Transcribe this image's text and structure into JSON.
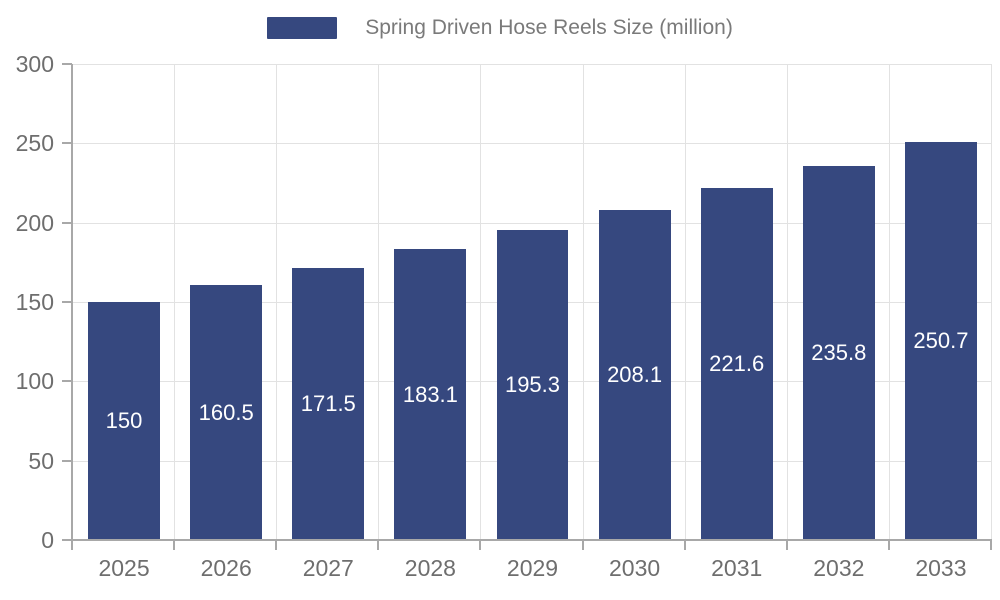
{
  "chart_data": {
    "type": "bar",
    "title": "",
    "legend": "Spring Driven Hose Reels Size (million)",
    "legend_position": "top-center",
    "categories": [
      "2025",
      "2026",
      "2027",
      "2028",
      "2029",
      "2030",
      "2031",
      "2032",
      "2033"
    ],
    "series": [
      {
        "name": "Spring Driven Hose Reels Size (million)",
        "values": [
          150,
          160.5,
          171.5,
          183.1,
          195.3,
          208.1,
          221.6,
          235.8,
          250.7
        ]
      }
    ],
    "xlabel": "",
    "ylabel": "",
    "ylim": [
      0,
      300
    ],
    "ytick_step": 50,
    "yticks": [
      "0",
      "50",
      "100",
      "150",
      "200",
      "250",
      "300"
    ],
    "grid": true,
    "value_labels_shown": true,
    "value_label_position": "inside-center",
    "colors": {
      "bar": "#36487F",
      "grid": "#E2E2E2",
      "axis": "#A8A8A8",
      "tick_text": "#6E6E6E",
      "legend_text": "#7A7A7A",
      "bar_label": "#FFFFFF",
      "background": "#FFFFFF"
    }
  }
}
